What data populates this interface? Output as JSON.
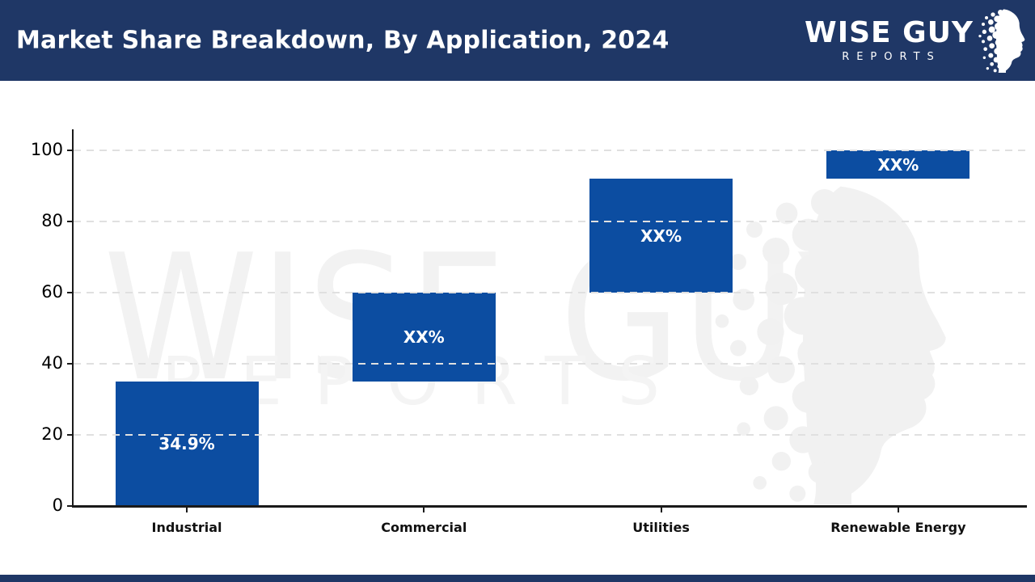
{
  "header": {
    "title": "Market Share Breakdown, By Application, 2024",
    "logo": {
      "line1": "WISE GUY",
      "line2": "REPORTS"
    }
  },
  "watermark": {
    "line1": "WISE GUY",
    "line2": "REPORTS"
  },
  "chart_data": {
    "type": "bar",
    "subtype": "waterfall",
    "title": "Market Share Breakdown, By Application, 2024",
    "categories": [
      "Industrial",
      "Commercial",
      "Utilities",
      "Renewable Energy"
    ],
    "series": [
      {
        "name": "Market Share",
        "segments": [
          {
            "category": "Industrial",
            "start": 0,
            "end": 34.9,
            "label": "34.9%"
          },
          {
            "category": "Commercial",
            "start": 34.9,
            "end": 60,
            "label": "XX%"
          },
          {
            "category": "Utilities",
            "start": 60,
            "end": 92,
            "label": "XX%"
          },
          {
            "category": "Renewable Energy",
            "start": 92,
            "end": 100,
            "label": "XX%"
          }
        ]
      }
    ],
    "xlabel": "",
    "ylabel": "",
    "ylim": [
      0,
      100
    ],
    "yticks": [
      0,
      20,
      40,
      60,
      80,
      100
    ],
    "grid": true,
    "legend": "none"
  },
  "colors": {
    "header_navy": "#1f3766",
    "footer_navy": "#1f3766",
    "bar_blue": "#0c4da1",
    "bar_label_white": "#ffffff",
    "gridline_gray": "#e0e0e0",
    "watermark_gray": "#f2f2f2"
  }
}
